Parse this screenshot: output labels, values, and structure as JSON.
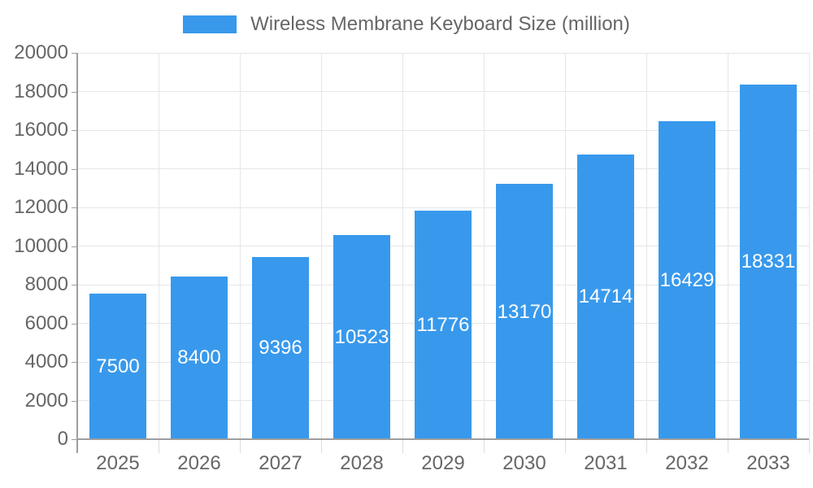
{
  "chart_data": {
    "type": "bar",
    "title": "Wireless Membrane Keyboard Size (million)",
    "legend": [
      "Wireless Membrane Keyboard Size (million)"
    ],
    "legend_position": "top",
    "categories": [
      "2025",
      "2026",
      "2027",
      "2028",
      "2029",
      "2030",
      "2031",
      "2032",
      "2033"
    ],
    "series": [
      {
        "name": "Wireless Membrane Keyboard Size (million)",
        "values": [
          7500,
          8400,
          9396,
          10523,
          11776,
          13170,
          14714,
          16429,
          18331
        ]
      }
    ],
    "xlabel": "",
    "ylabel": "",
    "ylim": [
      0,
      20000
    ],
    "ytick_step": 2000,
    "grid": true,
    "value_labels": "inside-center, white",
    "colors": {
      "bar": "#3899ec",
      "bar_label": "#ffffff",
      "axis_text": "#666666",
      "grid": "#e6e6e6",
      "axis_line": "#9e9e9e",
      "tick": "#dddddd",
      "background": "#ffffff"
    }
  }
}
